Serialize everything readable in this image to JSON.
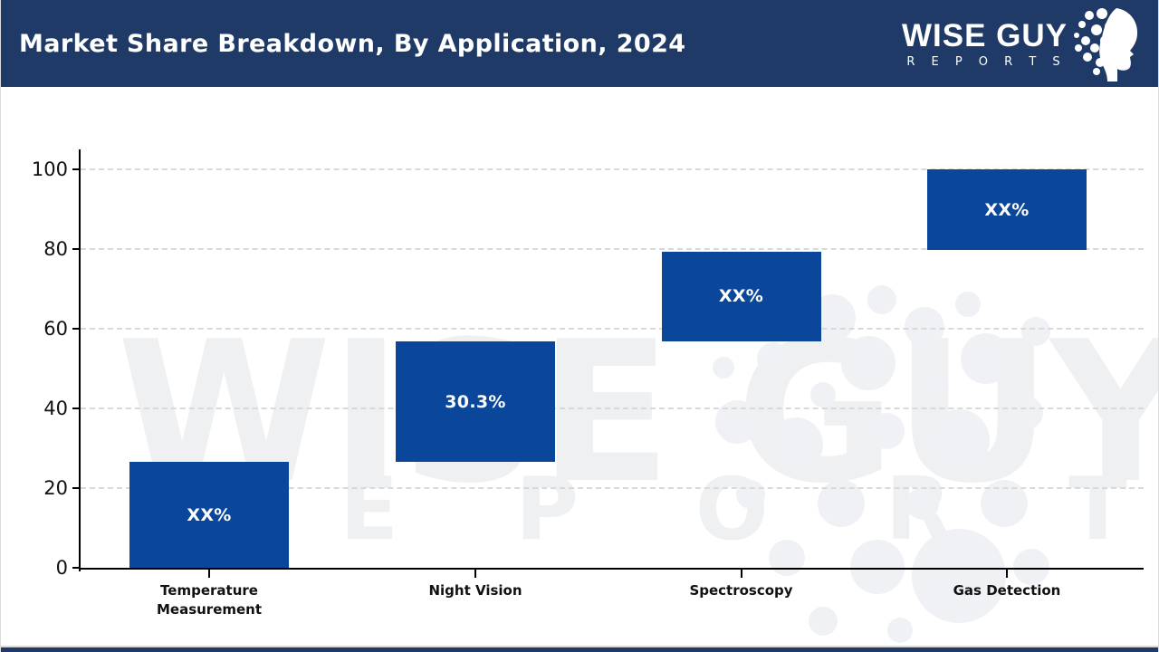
{
  "header": {
    "title": "Market Share Breakdown, By Application, 2024",
    "logo": {
      "line1": "WISE GUY",
      "line2": "R E P O R T S"
    }
  },
  "watermark": {
    "line1": "WISE GUY",
    "line2": "R E P O R T S"
  },
  "colors": {
    "header_bg": "#1f3a66",
    "bar_fill": "#0a4699",
    "gridline": "#d9d9d9",
    "watermark": "#eff0f2"
  },
  "chart_data": {
    "type": "bar",
    "subtype": "waterfall-floating-bars",
    "title": "Market Share Breakdown, By Application, 2024",
    "categories": [
      "Temperature Measurement",
      "Night Vision",
      "Spectroscopy",
      "Gas Detection"
    ],
    "bars": [
      {
        "category": "Temperature Measurement",
        "start": 0,
        "end": 26.5,
        "label": "XX%"
      },
      {
        "category": "Night Vision",
        "start": 26.5,
        "end": 56.8,
        "label": "30.3%"
      },
      {
        "category": "Spectroscopy",
        "start": 56.8,
        "end": 79.4,
        "label": "XX%"
      },
      {
        "category": "Gas Detection",
        "start": 79.7,
        "end": 100,
        "label": "XX%"
      }
    ],
    "y_ticks": [
      0,
      20,
      40,
      60,
      80,
      100
    ],
    "ylim": [
      0,
      105
    ],
    "xlabel": "",
    "ylabel": "",
    "grid": "horizontal-dashed",
    "legend": "none"
  }
}
